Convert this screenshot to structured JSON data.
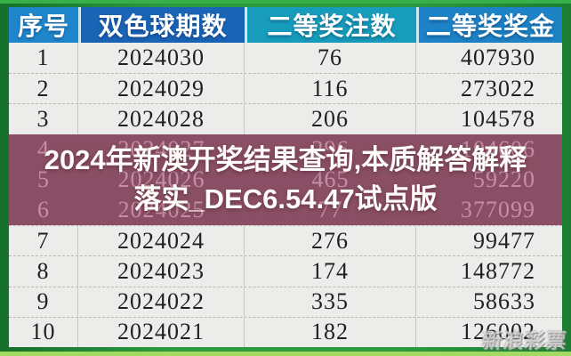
{
  "header": {
    "columns": [
      "序号",
      "双色球期数",
      "二等奖注数",
      "二等奖奖金"
    ]
  },
  "table": {
    "rows": [
      {
        "seq": "1",
        "period": "2024030",
        "count": "76",
        "prize": "407930"
      },
      {
        "seq": "2",
        "period": "2024029",
        "count": "116",
        "prize": "273022"
      },
      {
        "seq": "3",
        "period": "2024028",
        "count": "206",
        "prize": "104578"
      },
      {
        "seq": "4",
        "period": "2024027",
        "count": "296",
        "prize": "104606"
      },
      {
        "seq": "5",
        "period": "2024026",
        "count": "465",
        "prize": "59220"
      },
      {
        "seq": "6",
        "period": "2024025",
        "count": "77",
        "prize": "377099"
      },
      {
        "seq": "7",
        "period": "2024024",
        "count": "276",
        "prize": "99477"
      },
      {
        "seq": "8",
        "period": "2024023",
        "count": "174",
        "prize": "148772"
      },
      {
        "seq": "9",
        "period": "2024022",
        "count": "335",
        "prize": "58633"
      },
      {
        "seq": "10",
        "period": "2024021",
        "count": "182",
        "prize": "126002"
      }
    ]
  },
  "overlay": {
    "line1": "2024年新澳开奖结果查询,本质解答解释",
    "line2": "落实_DEC6.54.47试点版"
  },
  "watermark": "新浪彩票",
  "colors": {
    "frame_green": "#2e9a40",
    "header_blue_1": "#1f86cb",
    "header_blue_2": "#1a64b6",
    "header_teal": "#179cbb",
    "header_blue_4": "#1d82c6",
    "body_bg": "#ecedea",
    "overlay_maroon": "#8a4f64",
    "banner_text": "#fdfcf8"
  }
}
